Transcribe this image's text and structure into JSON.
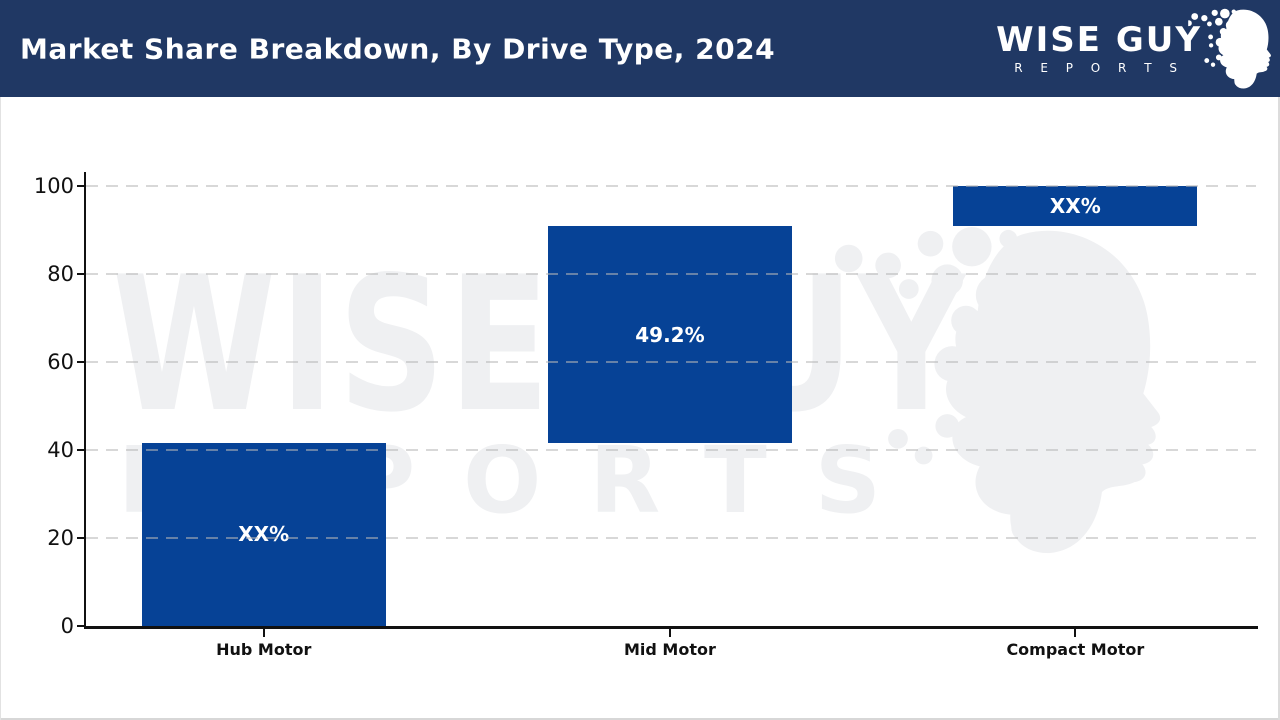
{
  "header": {
    "title": "Market Share Breakdown, By Drive Type, 2024",
    "logo": {
      "name_line": "WISE GUY",
      "sub_line": "R E P O R T S"
    }
  },
  "watermark": {
    "row1": "WISE GUY",
    "row2": "REPORTS"
  },
  "chart_data": {
    "type": "bar",
    "variant": "stacked-waterfall",
    "title": "Market Share Breakdown, By Drive Type, 2024",
    "unit": "%",
    "categories": [
      "Hub Motor",
      "Mid Motor",
      "Compact Motor"
    ],
    "segments": [
      {
        "category": "Hub Motor",
        "base": 0,
        "top": 41.6,
        "value_label": "XX%"
      },
      {
        "category": "Mid Motor",
        "base": 41.6,
        "top": 90.8,
        "value_label": "49.2%"
      },
      {
        "category": "Compact Motor",
        "base": 90.8,
        "top": 100,
        "value_label": "XX%"
      }
    ],
    "yticks": [
      0,
      20,
      40,
      60,
      80,
      100
    ],
    "ylim": [
      0,
      103
    ],
    "grid": {
      "axis": "y",
      "style": "dashed",
      "color": "#d9d9d9"
    },
    "legend": "none",
    "bar_color": "#064296",
    "bar_label_color": "#ffffff"
  },
  "colors": {
    "header_bg": "#203864",
    "bar": "#064296",
    "axis": "#111111",
    "watermark": "#eff0f2"
  }
}
